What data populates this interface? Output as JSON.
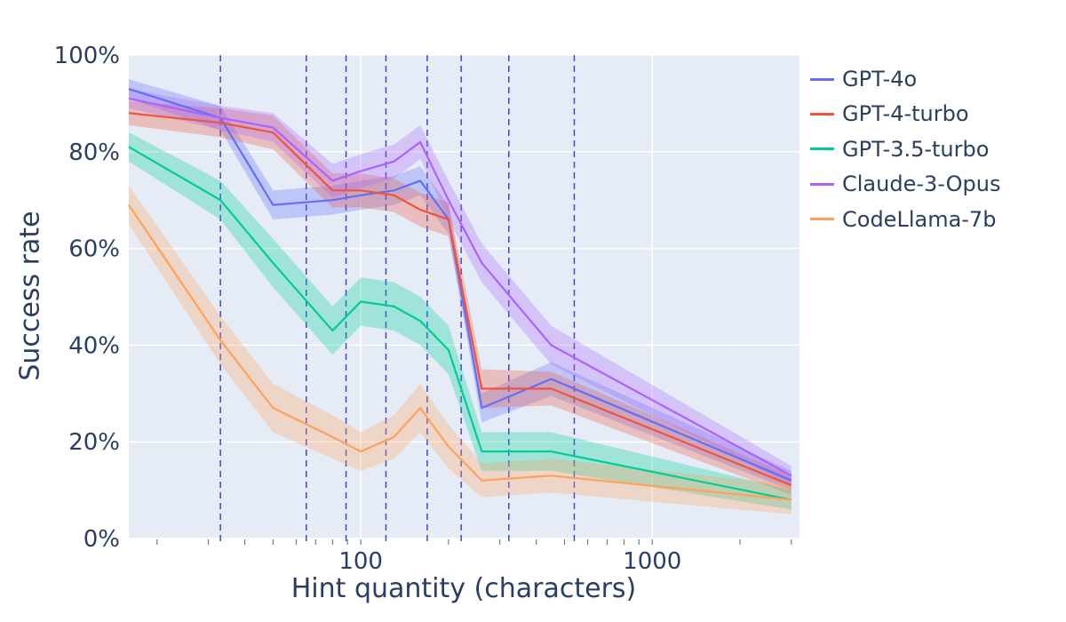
{
  "chart_data": {
    "type": "line",
    "title": "",
    "xlabel": "Hint quantity (characters)",
    "ylabel": "Success rate",
    "x_scale": "log",
    "xlim": [
      16,
      3200
    ],
    "ylim": [
      0,
      100
    ],
    "x": [
      16,
      33,
      50,
      80,
      100,
      130,
      160,
      200,
      260,
      450,
      3000
    ],
    "series": [
      {
        "name": "GPT-4o",
        "color": "#636efa",
        "values": [
          93,
          87,
          69,
          70,
          71,
          72,
          74,
          66,
          27,
          33,
          12
        ],
        "band": [
          2,
          2.5,
          3,
          3,
          3,
          3,
          3,
          3,
          3,
          3.5,
          2
        ]
      },
      {
        "name": "GPT-4-turbo",
        "color": "#ef553b",
        "values": [
          88,
          86,
          84,
          72,
          72,
          71,
          68,
          66,
          31,
          31,
          11
        ],
        "band": [
          2.5,
          3,
          3.5,
          3.5,
          3.5,
          3.5,
          3.5,
          3.5,
          4,
          3.5,
          2
        ]
      },
      {
        "name": "GPT-3.5-turbo",
        "color": "#00cc96",
        "values": [
          81,
          70,
          57,
          43,
          49,
          48,
          45,
          39,
          18,
          18,
          8
        ],
        "band": [
          3,
          4,
          5,
          5,
          5,
          5,
          5,
          5,
          4,
          4,
          2
        ]
      },
      {
        "name": "Claude-3-Opus",
        "color": "#ab63fa",
        "values": [
          91,
          87,
          85,
          74,
          76,
          78,
          82,
          70,
          57,
          40,
          13
        ],
        "band": [
          2,
          2.5,
          3,
          3.5,
          3.5,
          3.5,
          3.5,
          4,
          4,
          4,
          2
        ]
      },
      {
        "name": "CodeLlama-7b",
        "color": "#ffa15a",
        "values": [
          69,
          41,
          27,
          21,
          18,
          21,
          27,
          19,
          12,
          13,
          8
        ],
        "band": [
          4,
          5,
          5,
          4.5,
          4,
          4.5,
          5,
          4.5,
          3.5,
          3.5,
          3
        ]
      }
    ],
    "vlines": {
      "x": [
        33,
        65,
        89,
        122,
        169,
        221,
        322,
        540
      ],
      "color": "#4343d0",
      "style": "dashed"
    },
    "yticks": {
      "values": [
        0,
        20,
        40,
        60,
        80,
        100
      ],
      "labels": [
        "0%",
        "20%",
        "40%",
        "60%",
        "80%",
        "100%"
      ]
    },
    "xticks": {
      "values": [
        100,
        1000
      ],
      "labels": [
        "100",
        "1000"
      ]
    },
    "legend": {
      "position": "right",
      "entries": [
        "GPT-4o",
        "GPT-4-turbo",
        "GPT-3.5-turbo",
        "Claude-3-Opus",
        "CodeLlama-7b"
      ]
    },
    "colors": {
      "plot_bg": "#e5ecf6",
      "grid": "#ffffff",
      "text": "#2a3f5f",
      "tick": "#506784"
    }
  }
}
